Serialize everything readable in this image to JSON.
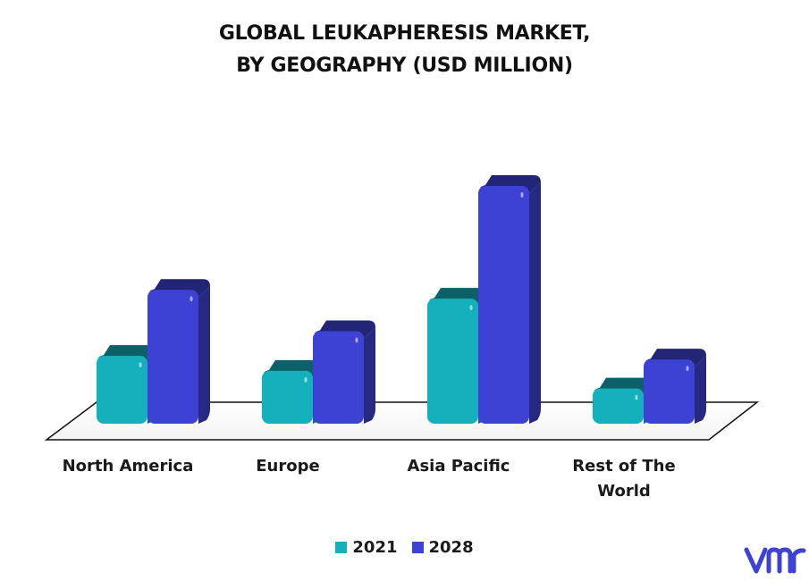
{
  "chart_data": {
    "type": "bar",
    "title_lines": [
      "GLOBAL LEUKAPHERESIS MARKET,",
      "BY GEOGRAPHY (USD MILLION)"
    ],
    "categories": [
      {
        "lines": [
          "North America"
        ]
      },
      {
        "lines": [
          "Europe"
        ]
      },
      {
        "lines": [
          "Asia Pacific"
        ]
      },
      {
        "lines": [
          "Rest of The",
          "World"
        ]
      }
    ],
    "series": [
      {
        "name": "2021",
        "color": "#14b1bc",
        "values": [
          77,
          60,
          142,
          40
        ]
      },
      {
        "name": "2028",
        "color": "#3d42d4",
        "values": [
          152,
          105,
          270,
          73
        ]
      }
    ],
    "ylim": [
      0,
      290
    ],
    "grid": false,
    "legend_position": "bottom",
    "style": "3d"
  },
  "logo": {
    "name": "vmr-logo-icon",
    "color": "#3d42d4"
  }
}
